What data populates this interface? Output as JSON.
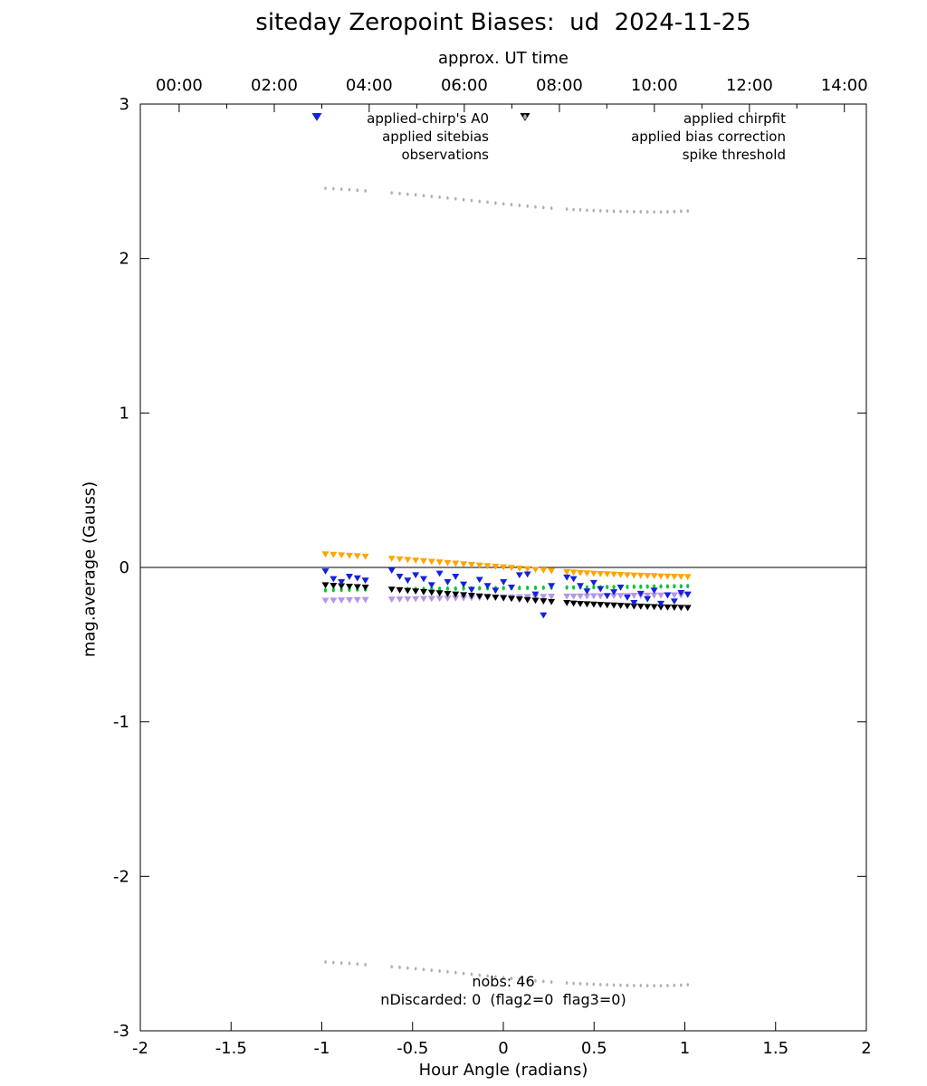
{
  "title": "siteday Zeropoint Biases:  ud  2024-11-25",
  "chart_data": {
    "type": "scatter",
    "title": "siteday Zeropoint Biases:  ud  2024-11-25",
    "xlabel": "Hour Angle (radians)",
    "ylabel": "mag.average (Gauss)",
    "x2label": "approx. UT time",
    "xlim": [
      -2,
      2
    ],
    "ylim": [
      -3,
      3
    ],
    "grid": false,
    "zero_line": true,
    "legend_position": "top-inside-two-columns",
    "x_ticks": {
      "values": [
        -2,
        -1.5,
        -1,
        -0.5,
        0,
        0.5,
        1,
        1.5,
        2
      ],
      "labels": [
        "-2",
        "-1.5",
        "-1",
        "-0.5",
        "0",
        "0.5",
        "1",
        "1.5",
        "2"
      ]
    },
    "y_ticks": {
      "values": [
        -3,
        -2,
        -1,
        0,
        1,
        2,
        3
      ],
      "labels": [
        "-3",
        "-2",
        "-1",
        "0",
        "1",
        "2",
        "3"
      ]
    },
    "x2_ticks": {
      "labels": [
        "00:00",
        "02:00",
        "04:00",
        "06:00",
        "08:00",
        "10:00",
        "12:00",
        "14:00"
      ],
      "positions": [
        -1.786,
        -1.262,
        -0.739,
        -0.215,
        0.309,
        0.832,
        1.356,
        1.879
      ],
      "minor_positions": [
        -1.524,
        -1.0,
        -0.477,
        0.047,
        0.57,
        1.094,
        1.617
      ]
    },
    "x": [
      -0.98,
      -0.936,
      -0.892,
      -0.848,
      -0.804,
      -0.76,
      -0.615,
      -0.571,
      -0.527,
      -0.483,
      -0.439,
      -0.395,
      -0.351,
      -0.307,
      -0.263,
      -0.219,
      -0.175,
      -0.131,
      -0.087,
      -0.043,
      0.001,
      0.045,
      0.089,
      0.133,
      0.177,
      0.221,
      0.265,
      0.35,
      0.387,
      0.424,
      0.461,
      0.498,
      0.535,
      0.572,
      0.609,
      0.646,
      0.683,
      0.72,
      0.757,
      0.794,
      0.831,
      0.868,
      0.905,
      0.942,
      0.979,
      1.016
    ],
    "series": [
      {
        "id": "a0",
        "name": "applied-chirp's A0",
        "marker": "dot",
        "size": 2.0,
        "color": "#00c832",
        "values": [
          -0.148,
          -0.146,
          -0.145,
          -0.144,
          -0.143,
          -0.142,
          -0.141,
          -0.14,
          -0.14,
          -0.139,
          -0.139,
          -0.138,
          -0.138,
          -0.137,
          -0.137,
          -0.136,
          -0.136,
          -0.135,
          -0.135,
          -0.134,
          -0.134,
          -0.133,
          -0.133,
          -0.132,
          -0.132,
          -0.131,
          -0.131,
          -0.13,
          -0.13,
          -0.129,
          -0.129,
          -0.128,
          -0.128,
          -0.127,
          -0.127,
          -0.126,
          -0.126,
          -0.125,
          -0.125,
          -0.124,
          -0.124,
          -0.123,
          -0.123,
          -0.122,
          -0.122,
          -0.121
        ]
      },
      {
        "id": "chirpfit",
        "name": "applied chirpfit",
        "marker": "triangle-down",
        "size": 4,
        "color": "#ffa500",
        "values": [
          0.085,
          0.082,
          0.079,
          0.076,
          0.073,
          0.07,
          0.057,
          0.053,
          0.049,
          0.045,
          0.041,
          0.037,
          0.033,
          0.029,
          0.025,
          0.021,
          0.017,
          0.013,
          0.009,
          0.005,
          0.001,
          -0.003,
          -0.007,
          -0.011,
          -0.015,
          -0.019,
          -0.023,
          -0.03,
          -0.033,
          -0.036,
          -0.038,
          -0.04,
          -0.042,
          -0.044,
          -0.046,
          -0.048,
          -0.05,
          -0.052,
          -0.053,
          -0.055,
          -0.056,
          -0.058,
          -0.059,
          -0.06,
          -0.061,
          -0.062
        ]
      },
      {
        "id": "sitebias",
        "name": "applied sitebias",
        "marker": "triangle-down",
        "size": 4,
        "color": "#b596ec",
        "values": [
          -0.215,
          -0.214,
          -0.213,
          -0.212,
          -0.211,
          -0.21,
          -0.208,
          -0.207,
          -0.206,
          -0.205,
          -0.204,
          -0.203,
          -0.202,
          -0.201,
          -0.2,
          -0.199,
          -0.198,
          -0.197,
          -0.196,
          -0.195,
          -0.194,
          -0.193,
          -0.192,
          -0.191,
          -0.19,
          -0.19,
          -0.189,
          -0.188,
          -0.188,
          -0.187,
          -0.187,
          -0.186,
          -0.186,
          -0.185,
          -0.185,
          -0.184,
          -0.184,
          -0.183,
          -0.183,
          -0.182,
          -0.182,
          -0.181,
          -0.181,
          -0.18,
          -0.18,
          -0.179
        ]
      },
      {
        "id": "biascorr",
        "name": "applied bias correction",
        "marker": "triangle-down",
        "size": 4,
        "color": "#000000",
        "values": [
          -0.115,
          -0.118,
          -0.121,
          -0.124,
          -0.127,
          -0.13,
          -0.143,
          -0.147,
          -0.151,
          -0.155,
          -0.159,
          -0.163,
          -0.167,
          -0.171,
          -0.175,
          -0.179,
          -0.183,
          -0.187,
          -0.191,
          -0.195,
          -0.199,
          -0.203,
          -0.207,
          -0.211,
          -0.215,
          -0.219,
          -0.223,
          -0.23,
          -0.233,
          -0.236,
          -0.238,
          -0.24,
          -0.242,
          -0.244,
          -0.246,
          -0.248,
          -0.25,
          -0.252,
          -0.253,
          -0.255,
          -0.256,
          -0.258,
          -0.259,
          -0.26,
          -0.261,
          -0.262
        ]
      },
      {
        "id": "obs",
        "name": "observations",
        "marker": "triangle-down",
        "size": 4,
        "color": "#1122dd",
        "values": [
          -0.025,
          -0.075,
          -0.095,
          -0.06,
          -0.07,
          -0.085,
          -0.02,
          -0.06,
          -0.085,
          -0.05,
          -0.075,
          -0.115,
          -0.04,
          -0.095,
          -0.06,
          -0.11,
          -0.145,
          -0.08,
          -0.12,
          -0.15,
          -0.095,
          -0.13,
          -0.05,
          -0.045,
          -0.175,
          -0.31,
          -0.12,
          -0.065,
          -0.075,
          -0.12,
          -0.155,
          -0.1,
          -0.14,
          -0.185,
          -0.16,
          -0.13,
          -0.195,
          -0.23,
          -0.17,
          -0.205,
          -0.15,
          -0.235,
          -0.18,
          -0.22,
          -0.165,
          -0.175
        ]
      },
      {
        "id": "spike",
        "name": "spike threshold",
        "marker": "dot",
        "size": 1.6,
        "color": "#b0b0b0",
        "values_upper": [
          2.455,
          2.452,
          2.449,
          2.446,
          2.442,
          2.438,
          2.425,
          2.421,
          2.416,
          2.412,
          2.407,
          2.402,
          2.397,
          2.392,
          2.387,
          2.381,
          2.376,
          2.37,
          2.365,
          2.359,
          2.354,
          2.349,
          2.344,
          2.339,
          2.334,
          2.33,
          2.326,
          2.32,
          2.317,
          2.315,
          2.313,
          2.311,
          2.309,
          2.308,
          2.306,
          2.305,
          2.304,
          2.303,
          2.303,
          2.302,
          2.302,
          2.302,
          2.303,
          2.304,
          2.306,
          2.308
        ],
        "values_lower": [
          -2.555,
          -2.558,
          -2.561,
          -2.564,
          -2.568,
          -2.572,
          -2.585,
          -2.589,
          -2.594,
          -2.598,
          -2.603,
          -2.608,
          -2.613,
          -2.618,
          -2.623,
          -2.629,
          -2.634,
          -2.64,
          -2.645,
          -2.651,
          -2.656,
          -2.661,
          -2.666,
          -2.671,
          -2.676,
          -2.68,
          -2.684,
          -2.69,
          -2.693,
          -2.695,
          -2.697,
          -2.699,
          -2.701,
          -2.702,
          -2.704,
          -2.705,
          -2.706,
          -2.707,
          -2.707,
          -2.708,
          -2.708,
          -2.708,
          -2.707,
          -2.706,
          -2.704,
          -2.702
        ]
      }
    ],
    "annotations": {
      "nobs": "nobs: 46",
      "ndiscarded": "nDiscarded: 0  (flag2=0  flag3=0)"
    }
  }
}
